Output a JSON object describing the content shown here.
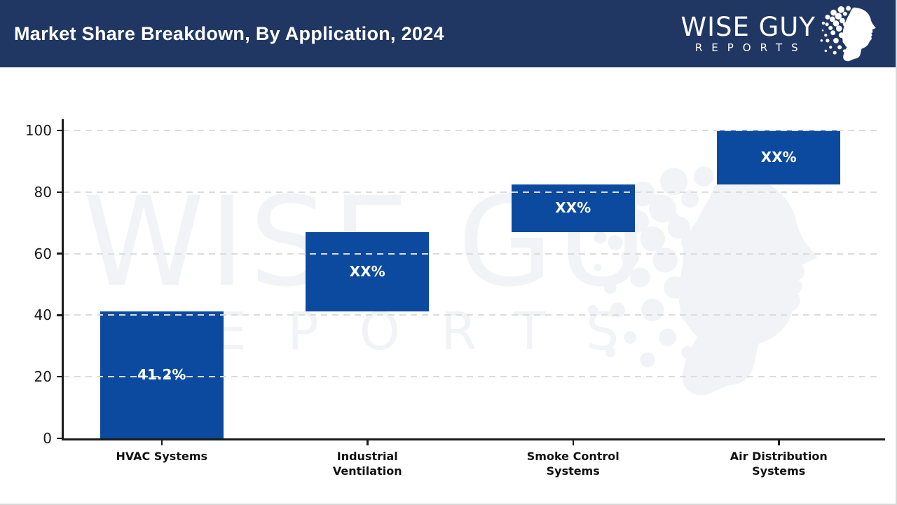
{
  "header": {
    "title": "Market Share Breakdown, By Application, 2024",
    "background_color": "#203763",
    "logo": {
      "line1": "WISE GUY",
      "line2": "REPORTS"
    }
  },
  "watermark": {
    "line1": "WISE GUY",
    "line2": "REPORTS"
  },
  "chart_data": {
    "type": "bar",
    "subtype": "waterfall",
    "title": "Market Share Breakdown, By Application, 2024",
    "xlabel": "",
    "ylabel": "",
    "ylim": [
      0,
      103.6
    ],
    "y_ticks": [
      0,
      20,
      40,
      60,
      80,
      100
    ],
    "grid": "horizontal-dashed",
    "legend": null,
    "bar_color": "#0b4a9e",
    "bar_label_color": "#ffffff",
    "categories": [
      "HVAC Systems",
      "Industrial Ventilation",
      "Smoke Control Systems",
      "Air Distribution Systems"
    ],
    "bars": [
      {
        "category": "HVAC Systems",
        "lines": [
          "HVAC Systems"
        ],
        "base": 0,
        "top": 41.2,
        "label": "41.2%"
      },
      {
        "category": "Industrial Ventilation",
        "lines": [
          "Industrial",
          "Ventilation"
        ],
        "base": 41.2,
        "top": 66.9,
        "label": "XX%"
      },
      {
        "category": "Smoke Control Systems",
        "lines": [
          "Smoke Control",
          "Systems"
        ],
        "base": 66.9,
        "top": 82.4,
        "label": "XX%"
      },
      {
        "category": "Air Distribution Systems",
        "lines": [
          "Air Distribution",
          "Systems"
        ],
        "base": 82.4,
        "top": 100,
        "label": "XX%"
      }
    ]
  }
}
